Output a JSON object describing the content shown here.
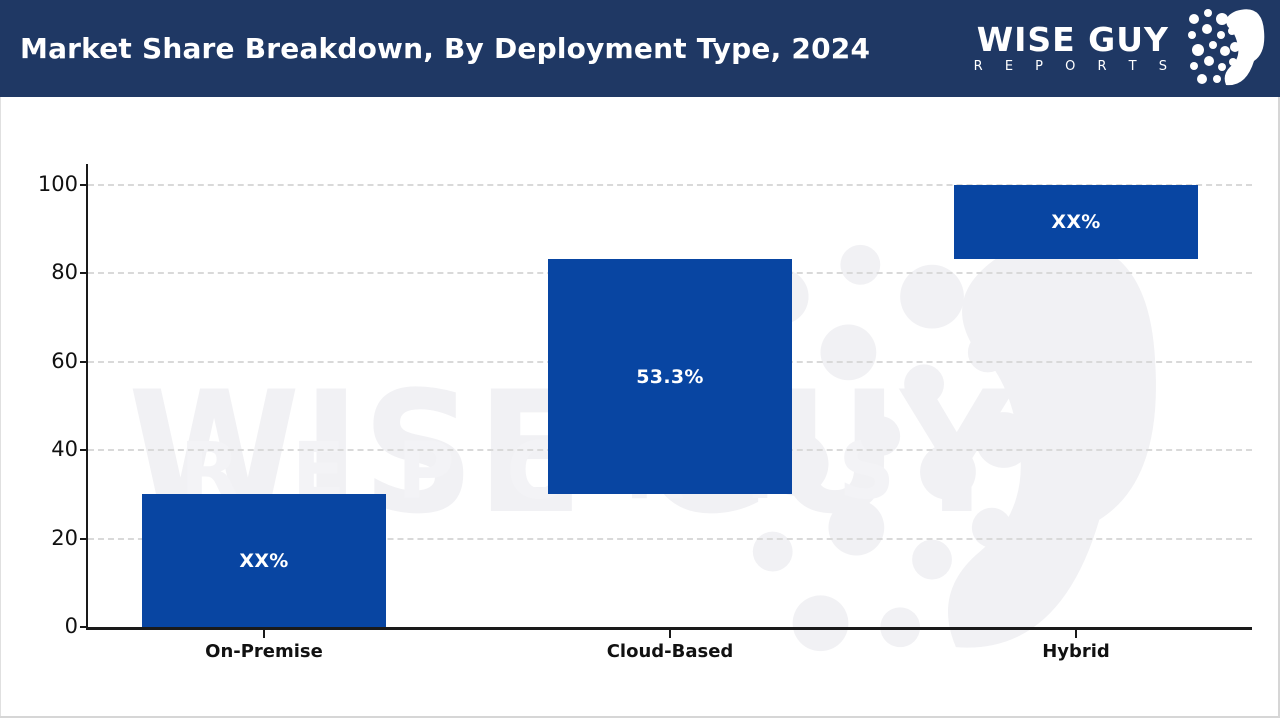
{
  "header": {
    "title": "Market Share Breakdown, By Deployment Type, 2024",
    "logo": {
      "main": "WISE GUY",
      "sub": "R E P O R T S"
    }
  },
  "watermark": {
    "big": "WISE GUY",
    "sub": "REPORTS"
  },
  "colors": {
    "header_bg": "#1f3864",
    "bar_blue": "#0845a2",
    "gridline": "#d9d9d9",
    "axis": "#1a1a1a",
    "bar_label": "#ffffff",
    "watermark": "#f1f1f4"
  },
  "chart_data": {
    "type": "bar",
    "subtype": "floating-segment (waterfall-style market share)",
    "title": "Market Share Breakdown, By Deployment Type, 2024",
    "categories": [
      "On-Premise",
      "Cloud-Based",
      "Hybrid"
    ],
    "segments": [
      {
        "category": "On-Premise",
        "start": 0,
        "end": 30,
        "label": "XX%"
      },
      {
        "category": "Cloud-Based",
        "start": 30,
        "end": 83.3,
        "label": "53.3%"
      },
      {
        "category": "Hybrid",
        "start": 83.3,
        "end": 100,
        "label": "XX%"
      }
    ],
    "xlabel": "",
    "ylabel": "",
    "ylim": [
      0,
      104.7
    ],
    "yticks": [
      0,
      20,
      40,
      60,
      80,
      100
    ],
    "grid": "horizontal dashed",
    "legend": "none"
  }
}
